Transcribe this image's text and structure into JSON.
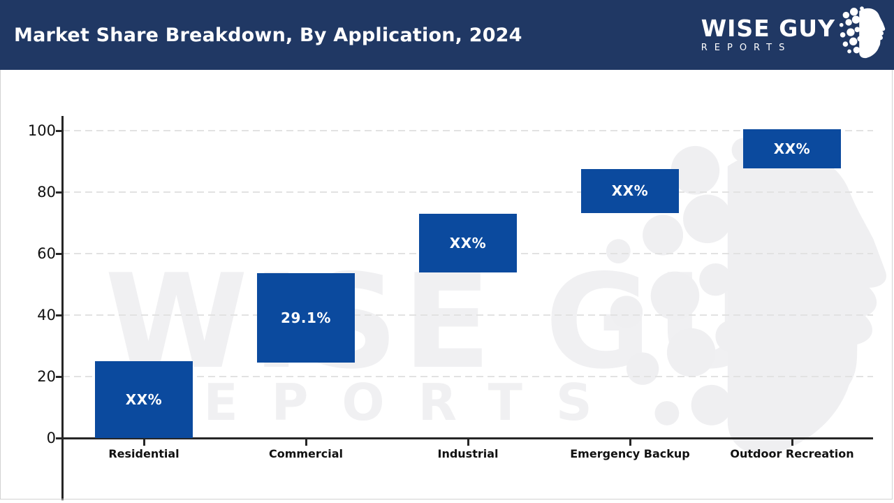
{
  "header": {
    "title": "Market Share Breakdown, By Application, 2024",
    "logo": {
      "line1": "WISE GUY",
      "line2": "REPORTS"
    }
  },
  "watermark": {
    "line1": "WISE GUY",
    "line2": "REPORTS"
  },
  "colors": {
    "header_bg": "#203864",
    "bar": "#0b4a9e",
    "bar_label_text": "#ffffff",
    "gridline": "#e2e2e2",
    "axis": "#262626",
    "watermark": "#f0f0f2",
    "page_border": "#d2d2d2"
  },
  "chart_data": {
    "type": "bar",
    "subtype": "waterfall",
    "title": "Market Share Breakdown, By Application, 2024",
    "categories": [
      "Residential",
      "Commercial",
      "Industrial",
      "Emergency Backup",
      "Outdoor Recreation"
    ],
    "segments": [
      {
        "category": "Residential",
        "start": 0,
        "end": 25.0,
        "height": 25.0,
        "label": "XX%"
      },
      {
        "category": "Commercial",
        "start": 24.5,
        "end": 53.6,
        "height": 29.1,
        "label": "29.1%"
      },
      {
        "category": "Industrial",
        "start": 53.9,
        "end": 73.0,
        "height": 19.1,
        "label": "XX%"
      },
      {
        "category": "Emergency Backup",
        "start": 73.2,
        "end": 87.5,
        "height": 14.3,
        "label": "XX%"
      },
      {
        "category": "Outdoor Recreation",
        "start": 87.7,
        "end": 100.4,
        "height": 12.7,
        "label": "XX%"
      }
    ],
    "yticks": [
      0,
      20,
      40,
      60,
      80,
      100
    ],
    "ylim": [
      0,
      105
    ],
    "xlabel": "",
    "ylabel": "",
    "grid": "horizontal-dashed",
    "legend": "none"
  }
}
